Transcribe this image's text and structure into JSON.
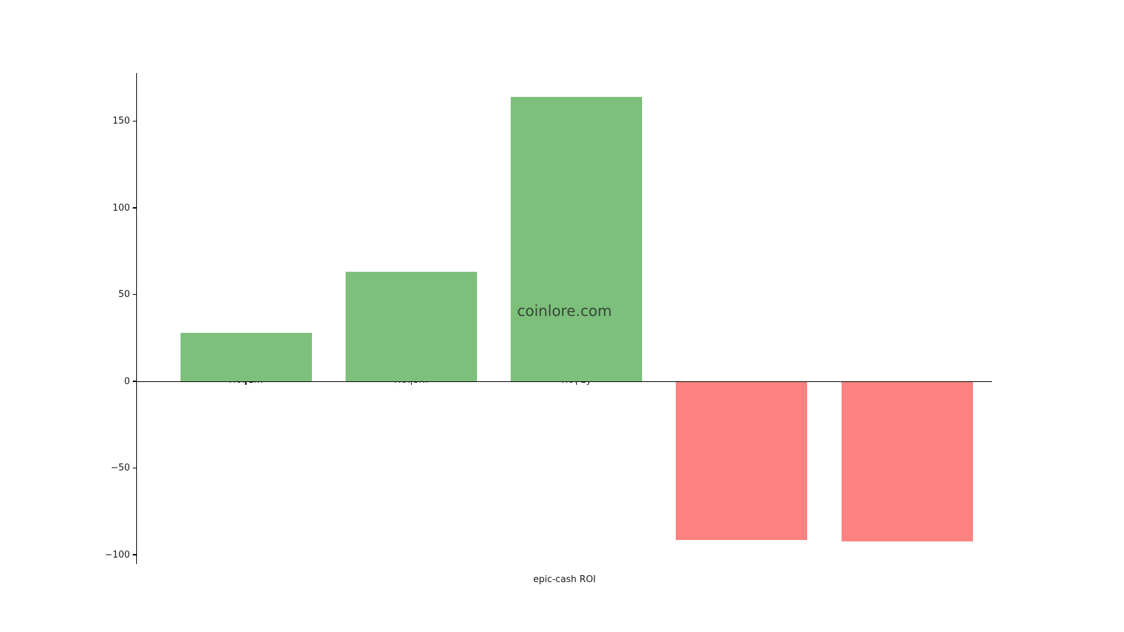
{
  "page": {
    "background_color": "#ffffff"
  },
  "watermark": {
    "text": "coinlore.com"
  },
  "chart_data": {
    "type": "bar",
    "title": "",
    "xlabel": "epic-cash ROI",
    "ylabel": "",
    "categories": [
      "ROI 1m",
      "ROI 3m",
      "ROI 1y",
      "",
      ""
    ],
    "values": [
      28,
      63,
      164,
      -91,
      -92
    ],
    "positive_color": "#7cc07c",
    "negative_color": "#fc8282",
    "yticks": [
      150,
      100,
      50,
      0,
      -50,
      -100
    ],
    "yticklabels": [
      "150",
      "100",
      "50",
      "0",
      "−50",
      "−100"
    ],
    "ylim": [
      -105,
      177
    ],
    "grid": false,
    "legend": "none",
    "notes": "x tick labels of the two negative bars are hidden behind the bars"
  }
}
